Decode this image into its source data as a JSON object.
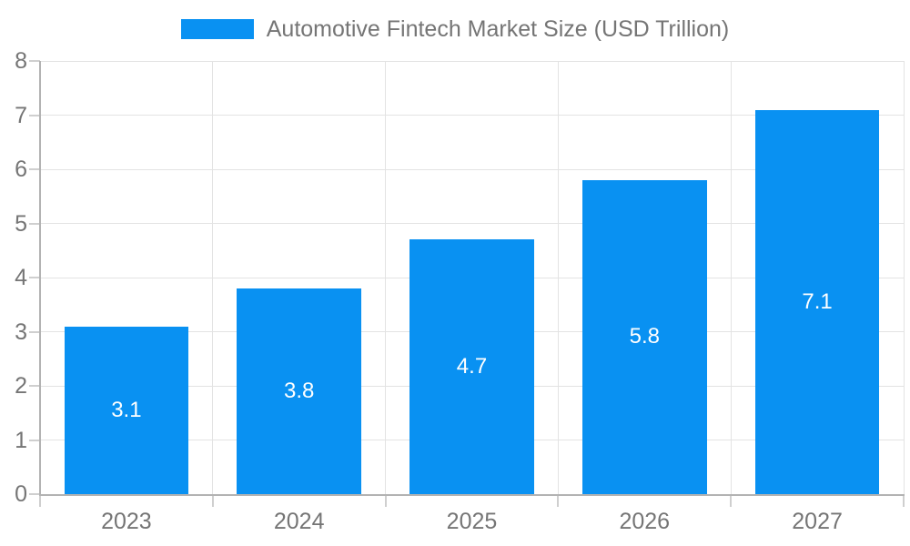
{
  "chart_data": {
    "type": "bar",
    "title": "",
    "legend_label": "Automotive Fintech Market Size (USD Trillion)",
    "legend_position": "top-center",
    "categories": [
      "2023",
      "2024",
      "2025",
      "2026",
      "2027"
    ],
    "series": [
      {
        "name": "Automotive Fintech Market Size (USD Trillion)",
        "values": [
          3.1,
          3.8,
          4.7,
          5.8,
          7.1
        ],
        "color": "#0991f2"
      }
    ],
    "bar_value_labels": [
      "3.1",
      "3.8",
      "4.7",
      "5.8",
      "7.1"
    ],
    "xlabel": "",
    "ylabel": "",
    "ylim": [
      0,
      8
    ],
    "yticks": [
      0,
      1,
      2,
      3,
      4,
      5,
      6,
      7,
      8
    ],
    "grid": true,
    "colors": {
      "bar": "#0991f2",
      "bar_label": "#ffffff",
      "gridline": "#e3e3e3",
      "axis_line": "#b3b3b3",
      "tick_mark": "#cfcfcf",
      "tick_label": "#757575",
      "legend_text": "#757575",
      "background": "#ffffff"
    }
  }
}
